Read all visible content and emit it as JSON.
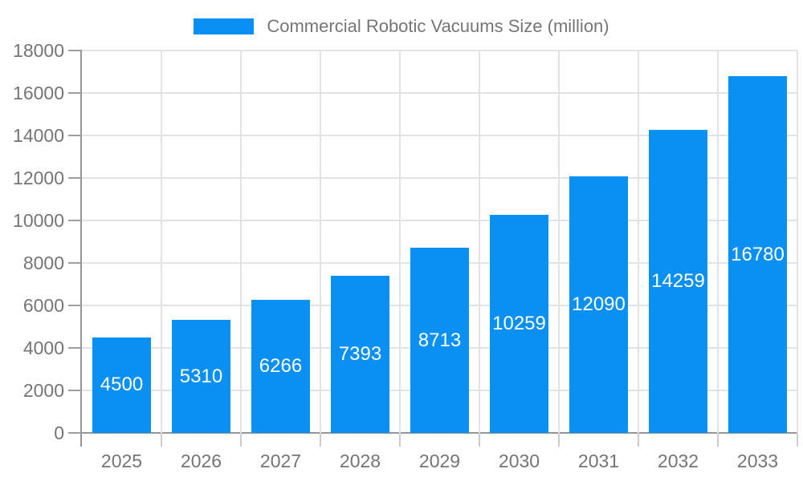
{
  "legend": {
    "label": "Commercial Robotic Vacuums Size (million)"
  },
  "chart_data": {
    "type": "bar",
    "title": "Commercial Robotic Vacuums Size (million)",
    "categories": [
      "2025",
      "2026",
      "2027",
      "2028",
      "2029",
      "2030",
      "2031",
      "2032",
      "2033"
    ],
    "values": [
      4500,
      5310,
      6266,
      7393,
      8713,
      10259,
      12090,
      14259,
      16780
    ],
    "series": [
      {
        "name": "Commercial Robotic Vacuums Size (million)",
        "values": [
          4500,
          5310,
          6266,
          7393,
          8713,
          10259,
          12090,
          14259,
          16780
        ]
      }
    ],
    "xlabel": "",
    "ylabel": "",
    "ylim": [
      0,
      18000
    ],
    "ytick_step": 2000,
    "ytick_labels": [
      "0",
      "2000",
      "4000",
      "6000",
      "8000",
      "10000",
      "12000",
      "14000",
      "16000",
      "18000"
    ],
    "grid": "on",
    "legend_position": "top-center",
    "value_labels": "inside-center-white"
  },
  "colors": {
    "bar": "#0a8ff2",
    "bar_label": "#ffffff",
    "axis_text": "#757575",
    "grid_line": "#e3e3e3",
    "axis_line": "#949494",
    "y_tick": "#9e9e9e",
    "x_tick": "#cccccc",
    "background": "#ffffff"
  }
}
